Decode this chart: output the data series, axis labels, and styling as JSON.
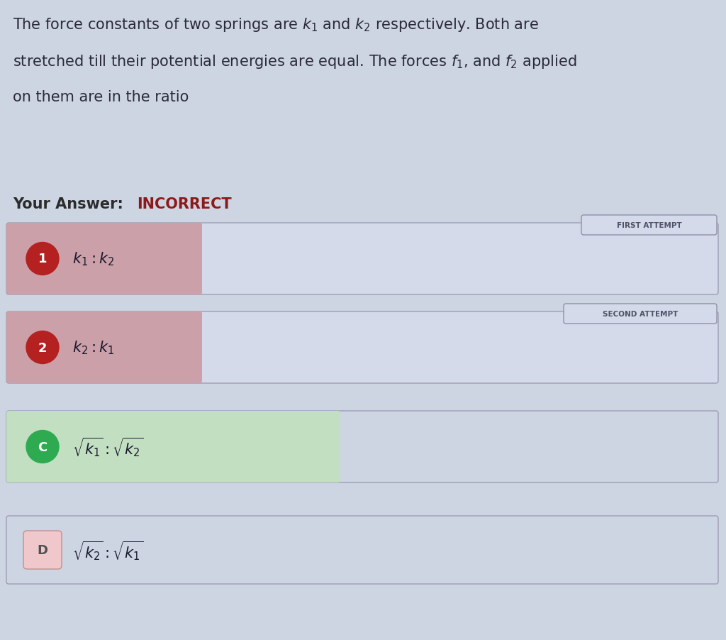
{
  "background_color": "#cdd5e3",
  "title_line1": "The force constants of two springs are $k_1$ and $k_2$ respectively. Both are",
  "title_line2": "stretched till their potential energies are equal. The forces $f_1$, and $f_2$ applied",
  "title_line3": "on them are in the ratio",
  "title_color": "#2a2a3a",
  "title_fontsize": 15,
  "answer_label": "Your Answer:",
  "answer_value": "INCORRECT",
  "answer_label_color": "#2c2c2c",
  "answer_value_color": "#8b1a1a",
  "options": [
    {
      "number": "1",
      "text": "$k_1 : k_2$",
      "circle_color": "#b52020",
      "bg_color_left": "#cca0a8",
      "bg_color_right": "#d4daea",
      "tag": "FIRST ATTEMPT",
      "full_width_left": true,
      "d_style": false
    },
    {
      "number": "2",
      "text": "$k_2 : k_1$",
      "circle_color": "#b52020",
      "bg_color_left": "#cca0a8",
      "bg_color_right": "#d4daea",
      "tag": "SECOND ATTEMPT",
      "full_width_left": true,
      "d_style": false
    },
    {
      "number": "C",
      "text": "$\\sqrt{k_1} : \\sqrt{k_2}$",
      "circle_color": "#2eaa50",
      "bg_color_left": "#c2dfc2",
      "bg_color_right": "#cdd5e3",
      "tag": null,
      "full_width_left": false,
      "d_style": false
    },
    {
      "number": "D",
      "text": "$\\sqrt{k_2} : \\sqrt{k_1}$",
      "circle_color": "#e8b4b8",
      "bg_color_left": "#cdd5e3",
      "bg_color_right": "#cdd5e3",
      "tag": null,
      "full_width_left": false,
      "d_style": true
    }
  ]
}
